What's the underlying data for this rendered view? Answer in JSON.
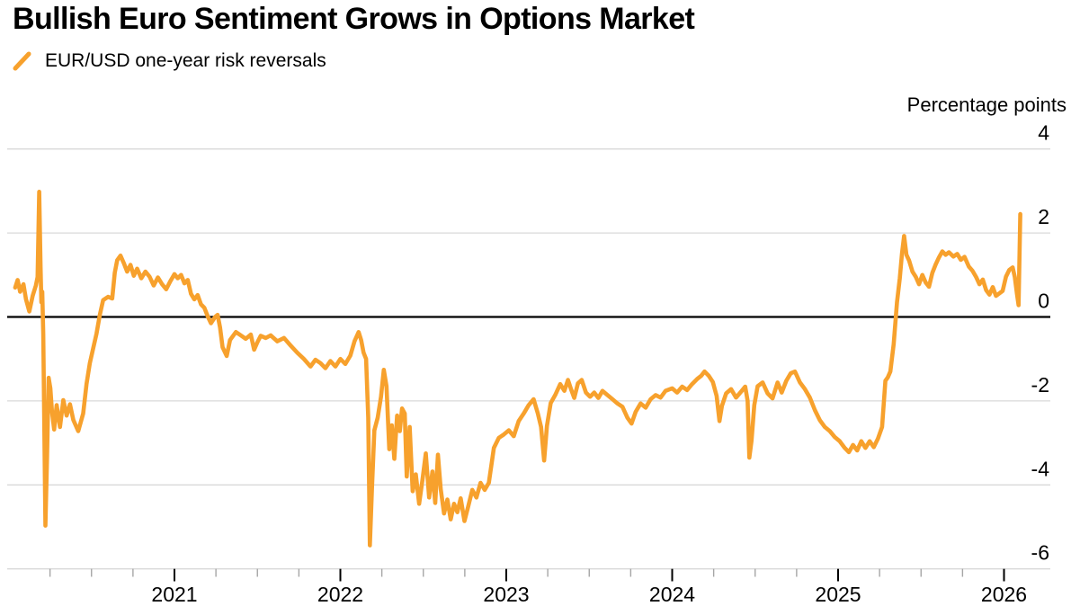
{
  "header": {
    "title": "Bullish Euro Sentiment Grows in Options Market"
  },
  "legend": {
    "label": "EUR/USD one-year risk reversals",
    "marker_color": "#F7A12D"
  },
  "colors": {
    "line": "#F7A12D",
    "grid": "#D9D9D9",
    "zero_line": "#000000",
    "minor_tick": "#A6A6A6",
    "major_tick": "#000000",
    "text": "#000000"
  },
  "chart_data": {
    "type": "line",
    "title": "Bullish Euro Sentiment Grows in Options Market",
    "ylabel": "Percentage points",
    "xlabel": "",
    "legend_position": "top-left",
    "grid": "horizontal-only",
    "zero_line": true,
    "ylim": [
      -6.6,
      4.3
    ],
    "xlim": [
      2020.0,
      2026.15
    ],
    "yticks": [
      4,
      2,
      0,
      -2,
      -4,
      -6
    ],
    "x_year_ticks": [
      2021,
      2022,
      2023,
      2024,
      2025,
      2026
    ],
    "x_year_labels": [
      "2021",
      "2022",
      "2023",
      "2024",
      "2025",
      "2026"
    ],
    "x_minor_tick_cadence": "quarterly",
    "series": [
      {
        "name": "EUR/USD one-year risk reversals",
        "color": "#F7A12D",
        "points": [
          [
            2020.04,
            0.7
          ],
          [
            2020.055,
            0.88
          ],
          [
            2020.07,
            0.6
          ],
          [
            2020.09,
            0.78
          ],
          [
            2020.105,
            0.42
          ],
          [
            2020.125,
            0.13
          ],
          [
            2020.145,
            0.5
          ],
          [
            2020.165,
            0.75
          ],
          [
            2020.175,
            0.95
          ],
          [
            2020.185,
            2.98
          ],
          [
            2020.193,
            1.2
          ],
          [
            2020.198,
            0.35
          ],
          [
            2020.203,
            0.6
          ],
          [
            2020.209,
            -0.4
          ],
          [
            2020.222,
            -4.97
          ],
          [
            2020.232,
            -3.35
          ],
          [
            2020.242,
            -1.45
          ],
          [
            2020.252,
            -1.7
          ],
          [
            2020.262,
            -2.25
          ],
          [
            2020.275,
            -2.68
          ],
          [
            2020.29,
            -2.1
          ],
          [
            2020.31,
            -2.62
          ],
          [
            2020.33,
            -1.98
          ],
          [
            2020.35,
            -2.35
          ],
          [
            2020.37,
            -2.08
          ],
          [
            2020.39,
            -2.45
          ],
          [
            2020.42,
            -2.72
          ],
          [
            2020.45,
            -2.3
          ],
          [
            2020.47,
            -1.6
          ],
          [
            2020.49,
            -1.1
          ],
          [
            2020.51,
            -0.75
          ],
          [
            2020.53,
            -0.4
          ],
          [
            2020.55,
            0.05
          ],
          [
            2020.57,
            0.4
          ],
          [
            2020.6,
            0.48
          ],
          [
            2020.625,
            0.44
          ],
          [
            2020.64,
            1.05
          ],
          [
            2020.655,
            1.35
          ],
          [
            2020.675,
            1.46
          ],
          [
            2020.695,
            1.28
          ],
          [
            2020.715,
            1.08
          ],
          [
            2020.735,
            1.24
          ],
          [
            2020.755,
            0.98
          ],
          [
            2020.775,
            1.15
          ],
          [
            2020.8,
            0.92
          ],
          [
            2020.825,
            1.08
          ],
          [
            2020.85,
            0.96
          ],
          [
            2020.875,
            0.75
          ],
          [
            2020.9,
            0.94
          ],
          [
            2020.925,
            0.78
          ],
          [
            2020.95,
            0.66
          ],
          [
            2020.975,
            0.85
          ],
          [
            2021.0,
            1.02
          ],
          [
            2021.02,
            0.92
          ],
          [
            2021.04,
            1.0
          ],
          [
            2021.06,
            0.8
          ],
          [
            2021.08,
            0.88
          ],
          [
            2021.1,
            0.55
          ],
          [
            2021.12,
            0.42
          ],
          [
            2021.14,
            0.52
          ],
          [
            2021.16,
            0.3
          ],
          [
            2021.18,
            0.22
          ],
          [
            2021.2,
            0.02
          ],
          [
            2021.22,
            -0.15
          ],
          [
            2021.245,
            0.0
          ],
          [
            2021.26,
            0.05
          ],
          [
            2021.275,
            -0.25
          ],
          [
            2021.29,
            -0.72
          ],
          [
            2021.315,
            -0.93
          ],
          [
            2021.335,
            -0.55
          ],
          [
            2021.37,
            -0.36
          ],
          [
            2021.4,
            -0.44
          ],
          [
            2021.43,
            -0.52
          ],
          [
            2021.46,
            -0.42
          ],
          [
            2021.48,
            -0.78
          ],
          [
            2021.5,
            -0.6
          ],
          [
            2021.52,
            -0.45
          ],
          [
            2021.55,
            -0.5
          ],
          [
            2021.58,
            -0.44
          ],
          [
            2021.62,
            -0.58
          ],
          [
            2021.66,
            -0.5
          ],
          [
            2021.7,
            -0.68
          ],
          [
            2021.74,
            -0.85
          ],
          [
            2021.78,
            -1.0
          ],
          [
            2021.82,
            -1.18
          ],
          [
            2021.85,
            -1.02
          ],
          [
            2021.88,
            -1.1
          ],
          [
            2021.91,
            -1.22
          ],
          [
            2021.94,
            -1.05
          ],
          [
            2021.97,
            -1.18
          ],
          [
            2022.0,
            -1.0
          ],
          [
            2022.03,
            -1.12
          ],
          [
            2022.06,
            -0.92
          ],
          [
            2022.085,
            -0.58
          ],
          [
            2022.11,
            -0.36
          ],
          [
            2022.125,
            -0.55
          ],
          [
            2022.14,
            -0.85
          ],
          [
            2022.155,
            -1.0
          ],
          [
            2022.168,
            -2.4
          ],
          [
            2022.178,
            -5.44
          ],
          [
            2022.19,
            -4.1
          ],
          [
            2022.205,
            -2.7
          ],
          [
            2022.225,
            -2.4
          ],
          [
            2022.245,
            -1.9
          ],
          [
            2022.262,
            -1.26
          ],
          [
            2022.278,
            -1.65
          ],
          [
            2022.295,
            -3.15
          ],
          [
            2022.31,
            -2.58
          ],
          [
            2022.325,
            -3.38
          ],
          [
            2022.342,
            -2.35
          ],
          [
            2022.358,
            -2.72
          ],
          [
            2022.372,
            -2.18
          ],
          [
            2022.388,
            -2.3
          ],
          [
            2022.4,
            -3.8
          ],
          [
            2022.418,
            -2.62
          ],
          [
            2022.436,
            -4.15
          ],
          [
            2022.455,
            -3.75
          ],
          [
            2022.475,
            -4.45
          ],
          [
            2022.495,
            -3.88
          ],
          [
            2022.515,
            -3.25
          ],
          [
            2022.535,
            -4.3
          ],
          [
            2022.555,
            -3.68
          ],
          [
            2022.572,
            -4.43
          ],
          [
            2022.588,
            -3.28
          ],
          [
            2022.605,
            -4.1
          ],
          [
            2022.625,
            -4.68
          ],
          [
            2022.645,
            -4.35
          ],
          [
            2022.665,
            -4.82
          ],
          [
            2022.685,
            -4.45
          ],
          [
            2022.705,
            -4.65
          ],
          [
            2022.725,
            -4.32
          ],
          [
            2022.748,
            -4.86
          ],
          [
            2022.77,
            -4.52
          ],
          [
            2022.795,
            -4.12
          ],
          [
            2022.82,
            -4.3
          ],
          [
            2022.845,
            -3.95
          ],
          [
            2022.87,
            -4.12
          ],
          [
            2022.895,
            -3.95
          ],
          [
            2022.925,
            -3.12
          ],
          [
            2022.955,
            -2.88
          ],
          [
            2022.985,
            -2.8
          ],
          [
            2023.015,
            -2.7
          ],
          [
            2023.045,
            -2.84
          ],
          [
            2023.075,
            -2.48
          ],
          [
            2023.105,
            -2.3
          ],
          [
            2023.135,
            -2.1
          ],
          [
            2023.165,
            -1.96
          ],
          [
            2023.19,
            -2.3
          ],
          [
            2023.21,
            -2.62
          ],
          [
            2023.228,
            -3.42
          ],
          [
            2023.245,
            -2.6
          ],
          [
            2023.268,
            -2.05
          ],
          [
            2023.295,
            -1.86
          ],
          [
            2023.325,
            -1.6
          ],
          [
            2023.35,
            -1.76
          ],
          [
            2023.372,
            -1.5
          ],
          [
            2023.39,
            -1.72
          ],
          [
            2023.41,
            -1.93
          ],
          [
            2023.432,
            -1.58
          ],
          [
            2023.455,
            -1.5
          ],
          [
            2023.48,
            -1.8
          ],
          [
            2023.505,
            -1.9
          ],
          [
            2023.53,
            -1.8
          ],
          [
            2023.555,
            -1.93
          ],
          [
            2023.58,
            -1.76
          ],
          [
            2023.61,
            -1.86
          ],
          [
            2023.64,
            -1.96
          ],
          [
            2023.67,
            -2.06
          ],
          [
            2023.7,
            -2.14
          ],
          [
            2023.73,
            -2.4
          ],
          [
            2023.755,
            -2.54
          ],
          [
            2023.78,
            -2.26
          ],
          [
            2023.81,
            -2.06
          ],
          [
            2023.84,
            -2.16
          ],
          [
            2023.87,
            -1.96
          ],
          [
            2023.9,
            -1.86
          ],
          [
            2023.93,
            -1.92
          ],
          [
            2023.96,
            -1.76
          ],
          [
            2024.0,
            -1.7
          ],
          [
            2024.03,
            -1.8
          ],
          [
            2024.06,
            -1.66
          ],
          [
            2024.09,
            -1.74
          ],
          [
            2024.12,
            -1.6
          ],
          [
            2024.15,
            -1.48
          ],
          [
            2024.175,
            -1.4
          ],
          [
            2024.195,
            -1.3
          ],
          [
            2024.22,
            -1.4
          ],
          [
            2024.245,
            -1.55
          ],
          [
            2024.268,
            -1.88
          ],
          [
            2024.285,
            -2.48
          ],
          [
            2024.3,
            -2.12
          ],
          [
            2024.325,
            -1.82
          ],
          [
            2024.355,
            -1.72
          ],
          [
            2024.385,
            -1.92
          ],
          [
            2024.415,
            -1.78
          ],
          [
            2024.44,
            -1.66
          ],
          [
            2024.455,
            -2.0
          ],
          [
            2024.465,
            -3.35
          ],
          [
            2024.478,
            -2.95
          ],
          [
            2024.495,
            -2.1
          ],
          [
            2024.515,
            -1.65
          ],
          [
            2024.545,
            -1.56
          ],
          [
            2024.575,
            -1.82
          ],
          [
            2024.605,
            -1.94
          ],
          [
            2024.635,
            -1.56
          ],
          [
            2024.66,
            -1.8
          ],
          [
            2024.688,
            -1.52
          ],
          [
            2024.715,
            -1.34
          ],
          [
            2024.74,
            -1.3
          ],
          [
            2024.77,
            -1.56
          ],
          [
            2024.8,
            -1.72
          ],
          [
            2024.83,
            -1.92
          ],
          [
            2024.86,
            -2.22
          ],
          [
            2024.89,
            -2.46
          ],
          [
            2024.92,
            -2.62
          ],
          [
            2024.95,
            -2.72
          ],
          [
            2024.98,
            -2.86
          ],
          [
            2025.01,
            -2.96
          ],
          [
            2025.04,
            -3.12
          ],
          [
            2025.065,
            -3.22
          ],
          [
            2025.09,
            -3.05
          ],
          [
            2025.115,
            -3.18
          ],
          [
            2025.14,
            -2.96
          ],
          [
            2025.165,
            -3.12
          ],
          [
            2025.19,
            -2.96
          ],
          [
            2025.215,
            -3.1
          ],
          [
            2025.24,
            -2.9
          ],
          [
            2025.265,
            -2.62
          ],
          [
            2025.285,
            -1.52
          ],
          [
            2025.3,
            -1.44
          ],
          [
            2025.315,
            -1.3
          ],
          [
            2025.335,
            -0.65
          ],
          [
            2025.355,
            0.35
          ],
          [
            2025.372,
            0.92
          ],
          [
            2025.385,
            1.5
          ],
          [
            2025.398,
            1.93
          ],
          [
            2025.412,
            1.48
          ],
          [
            2025.428,
            1.34
          ],
          [
            2025.448,
            1.08
          ],
          [
            2025.468,
            0.96
          ],
          [
            2025.488,
            0.78
          ],
          [
            2025.508,
            1.0
          ],
          [
            2025.528,
            0.82
          ],
          [
            2025.548,
            0.72
          ],
          [
            2025.568,
            1.05
          ],
          [
            2025.588,
            1.25
          ],
          [
            2025.608,
            1.42
          ],
          [
            2025.628,
            1.56
          ],
          [
            2025.648,
            1.48
          ],
          [
            2025.668,
            1.54
          ],
          [
            2025.695,
            1.44
          ],
          [
            2025.718,
            1.5
          ],
          [
            2025.74,
            1.36
          ],
          [
            2025.762,
            1.43
          ],
          [
            2025.788,
            1.2
          ],
          [
            2025.81,
            1.1
          ],
          [
            2025.832,
            0.95
          ],
          [
            2025.852,
            0.78
          ],
          [
            2025.872,
            0.89
          ],
          [
            2025.892,
            0.64
          ],
          [
            2025.912,
            0.53
          ],
          [
            2025.932,
            0.71
          ],
          [
            2025.952,
            0.5
          ],
          [
            2025.972,
            0.56
          ],
          [
            2025.992,
            0.62
          ],
          [
            2026.012,
            0.96
          ],
          [
            2026.032,
            1.12
          ],
          [
            2026.052,
            1.18
          ],
          [
            2026.065,
            0.95
          ],
          [
            2026.078,
            0.55
          ],
          [
            2026.088,
            0.28
          ],
          [
            2026.098,
            2.45
          ]
        ]
      }
    ]
  }
}
